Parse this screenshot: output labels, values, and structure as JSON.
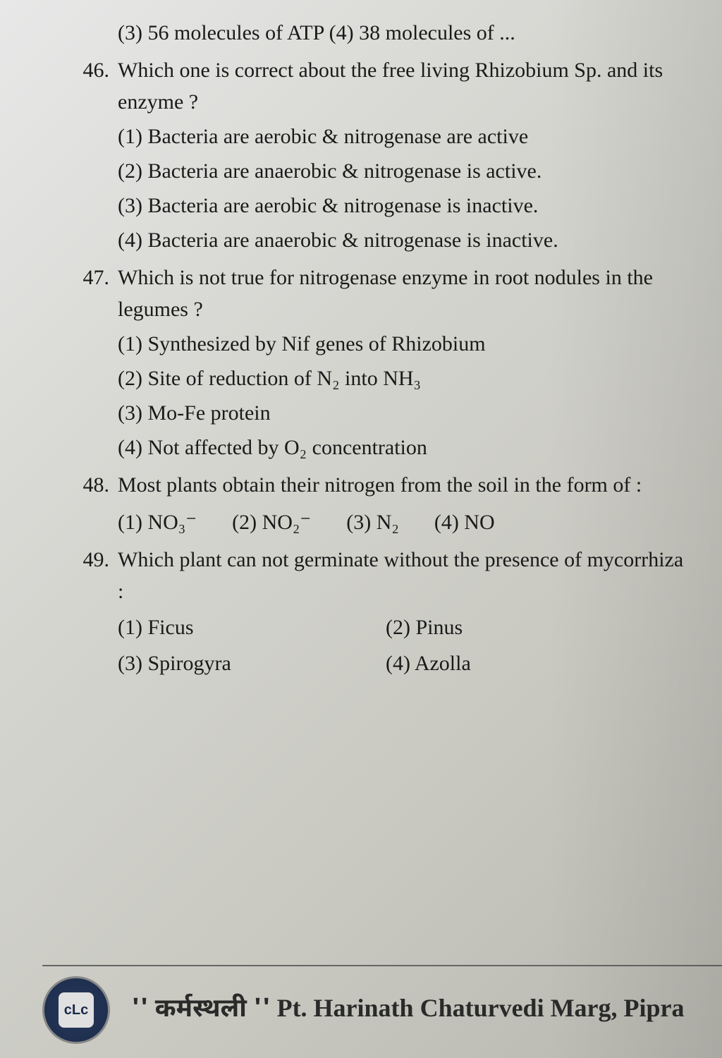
{
  "q45_options_partial": "(3) 56 molecules of ATP (4) 38 molecules of ...",
  "q46": {
    "num": "46.",
    "text": "Which one is correct about the free living Rhizobium Sp. and its enzyme ?",
    "opts": [
      "(1) Bacteria are aerobic & nitrogenase are active",
      "(2) Bacteria are anaerobic & nitrogenase is active.",
      "(3) Bacteria are aerobic & nitrogenase is inactive.",
      "(4) Bacteria are anaerobic & nitrogenase is inactive."
    ]
  },
  "q47": {
    "num": "47.",
    "text": "Which is not true for nitrogenase enzyme in root nodules in the legumes ?",
    "opts": [
      "(1) Synthesized by Nif genes of Rhizobium",
      "(2) Site of reduction of N₂ into NH₃",
      "(3) Mo-Fe protein",
      "(4) Not affected by O₂ concentration"
    ]
  },
  "q48": {
    "num": "48.",
    "text": "Most plants obtain their nitrogen from the soil in the form of :",
    "opts": [
      "(1) NO₃⁻",
      "(2) NO₂⁻",
      "(3) N₂",
      "(4) NO"
    ]
  },
  "q49": {
    "num": "49.",
    "text": "Which plant can not germinate without the presence of mycorrhiza :",
    "opts": [
      "(1) Ficus",
      "(2) Pinus",
      "(3) Spirogyra",
      "(4) Azolla"
    ]
  },
  "footer": {
    "logo_text": "cLc",
    "hindi": "'' कर्मस्थली ''",
    "address": "Pt. Harinath Chaturvedi Marg, Pipra"
  },
  "style": {
    "font_size_body": 30,
    "font_size_footer": 36,
    "text_color": "#1a1a1a",
    "bg_gradient_start": "#e8e8e8",
    "bg_gradient_end": "#b8b8b0",
    "logo_bg": "#1a2a4a",
    "footer_line_color": "#666666"
  }
}
